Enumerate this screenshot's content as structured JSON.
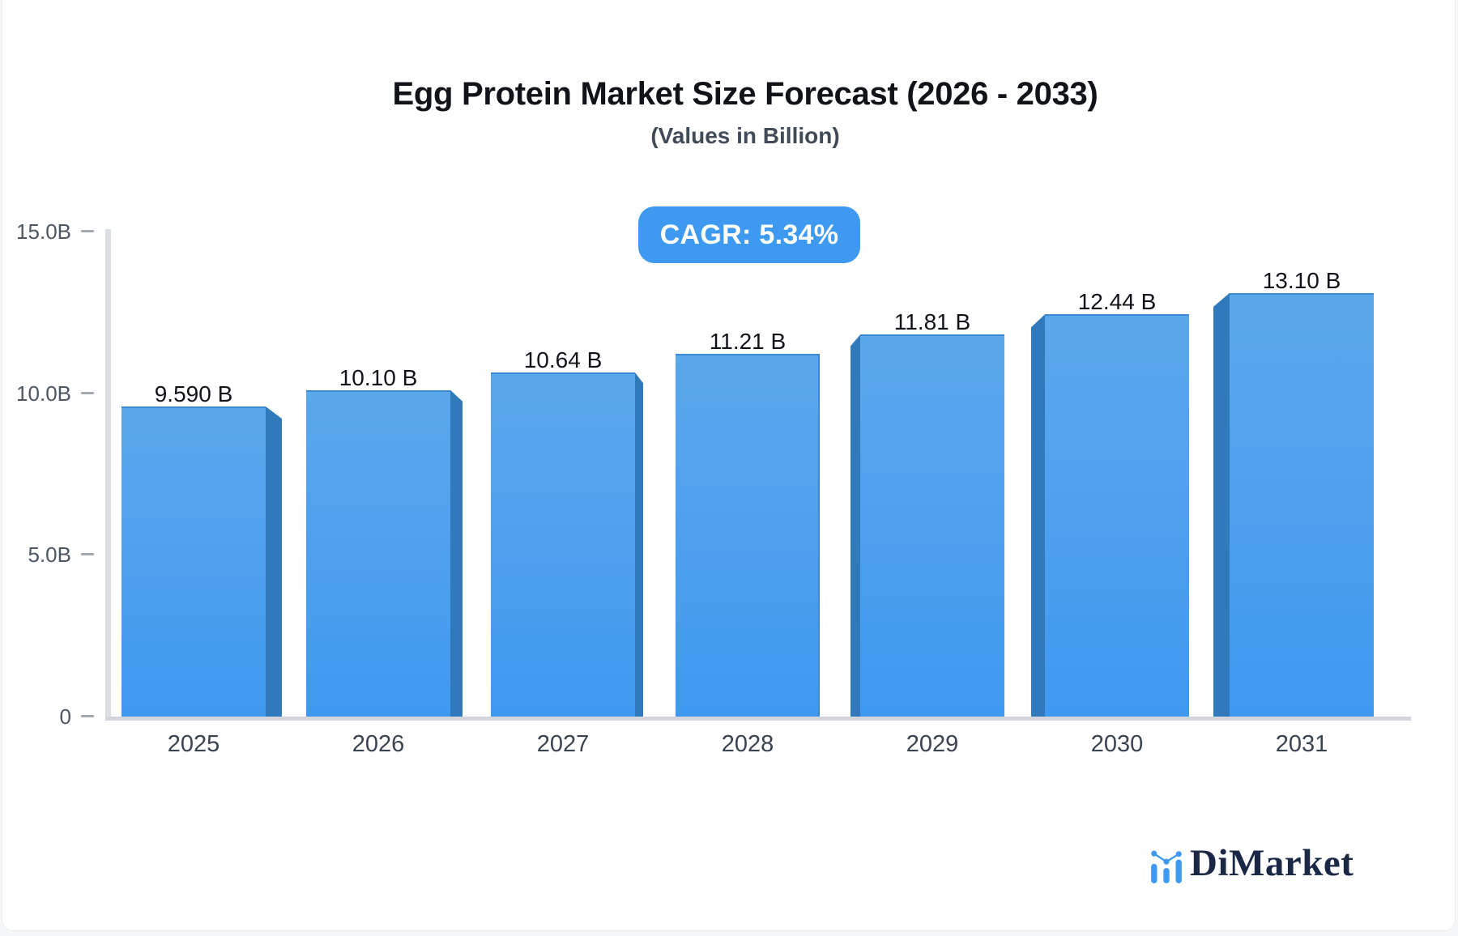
{
  "header": {
    "title": "Egg Protein Market Size Forecast (2026 - 2033)",
    "subtitle": "(Values in Billion)",
    "cagr_label": "CAGR: 5.34%"
  },
  "chart_data": {
    "type": "bar",
    "title": "Egg Protein Market Size Forecast (2026 - 2033)",
    "subtitle": "(Values in Billion)",
    "cagr_percent": 5.34,
    "categories": [
      "2025",
      "2026",
      "2027",
      "2028",
      "2029",
      "2030",
      "2031"
    ],
    "values": [
      9.59,
      10.1,
      10.64,
      11.21,
      11.81,
      12.44,
      13.1
    ],
    "value_labels": [
      "9.590 B",
      "10.10 B",
      "10.64 B",
      "11.21 B",
      "11.81 B",
      "12.44 B",
      "13.10 B"
    ],
    "yticks": [
      {
        "value": 15,
        "label": "15.0B"
      },
      {
        "value": 10,
        "label": "10.0B"
      },
      {
        "value": 5,
        "label": "5.0B"
      },
      {
        "value": 0,
        "label": "0"
      }
    ],
    "ylim": [
      0,
      15
    ],
    "xlabel": "",
    "ylabel": "",
    "grid": false,
    "legend": false,
    "style": "3d-bars-center-perspective",
    "colors": {
      "bar_front_top": "#5ba7ec",
      "bar_front_bottom": "#4099f0",
      "bar_side": "#3079bb",
      "bar_edge": "#3d89d1",
      "badge_blue": "#3d9af0"
    }
  },
  "footer": {
    "brand": "DiMarket"
  }
}
